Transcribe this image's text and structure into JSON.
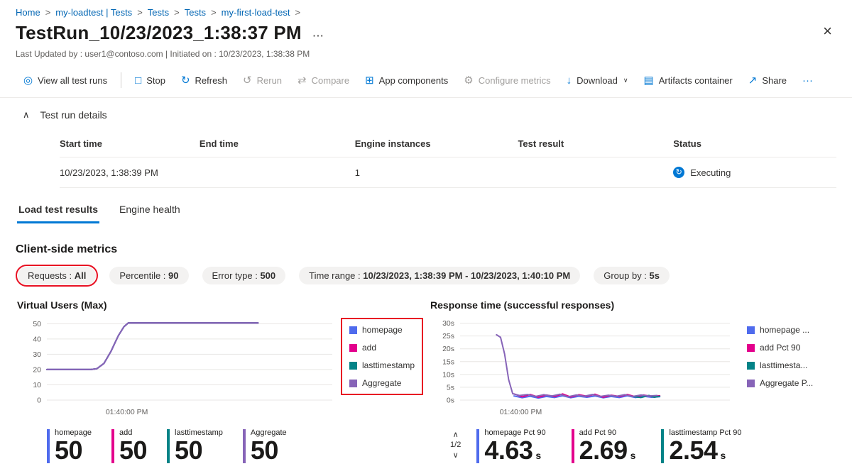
{
  "colors": {
    "accent": "#0078d4",
    "highlight": "#e81123",
    "homepage": "#4f6bed",
    "add": "#e3008c",
    "lasttimestamp": "#038387",
    "aggregate": "#8764b8"
  },
  "icons": {
    "view-all": "◎",
    "stop": "□",
    "refresh": "↻",
    "rerun": "↺",
    "compare": "⇄",
    "app-components": "⊞",
    "configure-metrics": "⚙",
    "download": "↓",
    "artifacts-container": "▤",
    "share": "↗",
    "more": "···",
    "chevron-up": "∧",
    "chevron-down": "∨",
    "close": "×",
    "spinner": "↻",
    "breadcrumb-separator": ">"
  },
  "breadcrumb": {
    "items": [
      "Home",
      "my-loadtest | Tests",
      "Tests",
      "Tests",
      "my-first-load-test"
    ]
  },
  "header": {
    "title": "TestRun_10/23/2023_1:38:37 PM",
    "subtitle": "Last Updated by : user1@contoso.com | Initiated on : 10/23/2023, 1:38:38 PM"
  },
  "toolbar": {
    "items": [
      {
        "label": "View all test runs",
        "icon": "view-all",
        "enabled": true
      },
      {
        "divider": true
      },
      {
        "label": "Stop",
        "icon": "stop",
        "enabled": true
      },
      {
        "label": "Refresh",
        "icon": "refresh",
        "enabled": true
      },
      {
        "label": "Rerun",
        "icon": "rerun",
        "enabled": false
      },
      {
        "label": "Compare",
        "icon": "compare",
        "enabled": false
      },
      {
        "label": "App components",
        "icon": "app-components",
        "enabled": true
      },
      {
        "label": "Configure metrics",
        "icon": "configure-metrics",
        "enabled": false
      },
      {
        "label": "Download",
        "icon": "download",
        "enabled": true,
        "caret": true
      },
      {
        "label": "Artifacts container",
        "icon": "artifacts-container",
        "enabled": true
      },
      {
        "label": "Share",
        "icon": "share",
        "enabled": true
      },
      {
        "label": "",
        "icon": "more",
        "enabled": true
      }
    ]
  },
  "details": {
    "toggle_label": "Test run details",
    "table": {
      "headers": [
        "Start time",
        "End time",
        "Engine instances",
        "Test result",
        "Status"
      ],
      "row": {
        "start_time": "10/23/2023, 1:38:39 PM",
        "end_time": "",
        "engine_instances": "1",
        "test_result": "",
        "status": "Executing"
      }
    }
  },
  "tabs": {
    "items": [
      {
        "label": "Load test results",
        "active": true
      },
      {
        "label": "Engine health",
        "active": false
      }
    ]
  },
  "metrics": {
    "section_title": "Client-side metrics",
    "filters": [
      {
        "label": "Requests",
        "value": "All",
        "highlighted": true
      },
      {
        "label": "Percentile",
        "value": "90"
      },
      {
        "label": "Error type",
        "value": "500"
      },
      {
        "label": "Time range",
        "value": "10/23/2023, 1:38:39 PM - 10/23/2023, 1:40:10 PM"
      },
      {
        "label": "Group by",
        "value": "5s"
      }
    ]
  },
  "chart_data": [
    {
      "type": "line",
      "title": "Virtual Users (Max)",
      "ylim": [
        0,
        52
      ],
      "yticks": [
        {
          "v": 0,
          "label": "0"
        },
        {
          "v": 10,
          "label": "10"
        },
        {
          "v": 20,
          "label": "20"
        },
        {
          "v": 30,
          "label": "30"
        },
        {
          "v": 40,
          "label": "40"
        },
        {
          "v": 50,
          "label": "50"
        }
      ],
      "xtick": {
        "t": 0.28,
        "label": "01:40:00 PM"
      },
      "series": [
        {
          "name": "homepage",
          "color": "#4f6bed",
          "points": [
            [
              0,
              20
            ],
            [
              0.155,
              20
            ],
            [
              0.175,
              20.5
            ],
            [
              0.2,
              24
            ],
            [
              0.225,
              32
            ],
            [
              0.25,
              42
            ],
            [
              0.27,
              48
            ],
            [
              0.285,
              50.5
            ],
            [
              0.74,
              50.5
            ]
          ]
        },
        {
          "name": "add",
          "color": "#e3008c",
          "points": [
            [
              0,
              20
            ],
            [
              0.155,
              20
            ],
            [
              0.175,
              20.5
            ],
            [
              0.2,
              24
            ],
            [
              0.225,
              32
            ],
            [
              0.25,
              42
            ],
            [
              0.27,
              48
            ],
            [
              0.285,
              50.5
            ],
            [
              0.74,
              50.5
            ]
          ]
        },
        {
          "name": "lasttimestamp",
          "color": "#038387",
          "points": [
            [
              0,
              20
            ],
            [
              0.155,
              20
            ],
            [
              0.175,
              20.5
            ],
            [
              0.2,
              24
            ],
            [
              0.225,
              32
            ],
            [
              0.25,
              42
            ],
            [
              0.27,
              48
            ],
            [
              0.285,
              50.5
            ],
            [
              0.74,
              50.5
            ]
          ]
        },
        {
          "name": "Aggregate",
          "color": "#8764b8",
          "points": [
            [
              0,
              20
            ],
            [
              0.155,
              20
            ],
            [
              0.175,
              20.5
            ],
            [
              0.2,
              24
            ],
            [
              0.225,
              32
            ],
            [
              0.25,
              42
            ],
            [
              0.27,
              48
            ],
            [
              0.285,
              50.5
            ],
            [
              0.74,
              50.5
            ]
          ]
        }
      ],
      "legend": [
        {
          "label": "homepage",
          "color": "#4f6bed"
        },
        {
          "label": "add",
          "color": "#e3008c"
        },
        {
          "label": "lasttimestamp",
          "color": "#038387"
        },
        {
          "label": "Aggregate",
          "color": "#8764b8"
        }
      ],
      "legend_highlighted": true,
      "stats": [
        {
          "label": "homepage",
          "value": "50",
          "color": "#4f6bed"
        },
        {
          "label": "add",
          "value": "50",
          "color": "#e3008c"
        },
        {
          "label": "lasttimestamp",
          "value": "50",
          "color": "#038387"
        },
        {
          "label": "Aggregate",
          "value": "50",
          "color": "#8764b8"
        }
      ]
    },
    {
      "type": "line",
      "title": "Response time (successful responses)",
      "ylim": [
        0,
        31
      ],
      "yticks": [
        {
          "v": 0,
          "label": "0s"
        },
        {
          "v": 5,
          "label": "5s"
        },
        {
          "v": 10,
          "label": "10s"
        },
        {
          "v": 15,
          "label": "15s"
        },
        {
          "v": 20,
          "label": "20s"
        },
        {
          "v": 25,
          "label": "25s"
        },
        {
          "v": 30,
          "label": "30s"
        }
      ],
      "xtick": {
        "t": 0.225,
        "label": "01:40:00 PM"
      },
      "series": [
        {
          "name": "homepage Pct 90",
          "color": "#4f6bed",
          "points": [
            [
              0.2,
              1.6
            ],
            [
              0.23,
              0.9
            ],
            [
              0.26,
              1.5
            ],
            [
              0.29,
              0.8
            ],
            [
              0.32,
              1.4
            ],
            [
              0.35,
              1.0
            ],
            [
              0.38,
              1.7
            ],
            [
              0.41,
              0.9
            ],
            [
              0.44,
              1.5
            ],
            [
              0.47,
              1.1
            ],
            [
              0.5,
              1.6
            ],
            [
              0.53,
              0.9
            ],
            [
              0.56,
              1.4
            ],
            [
              0.59,
              1.0
            ],
            [
              0.62,
              1.7
            ],
            [
              0.65,
              1.0
            ],
            [
              0.68,
              1.5
            ],
            [
              0.71,
              1.1
            ],
            [
              0.74,
              1.3
            ]
          ]
        },
        {
          "name": "add Pct 90",
          "color": "#e3008c",
          "points": [
            [
              0.2,
              2.4
            ],
            [
              0.23,
              1.3
            ],
            [
              0.26,
              2.2
            ],
            [
              0.29,
              1.1
            ],
            [
              0.32,
              2.0
            ],
            [
              0.35,
              1.4
            ],
            [
              0.38,
              2.4
            ],
            [
              0.41,
              1.2
            ],
            [
              0.44,
              2.1
            ],
            [
              0.47,
              1.5
            ],
            [
              0.5,
              2.3
            ],
            [
              0.53,
              1.1
            ],
            [
              0.56,
              1.9
            ],
            [
              0.59,
              1.4
            ],
            [
              0.62,
              2.2
            ],
            [
              0.65,
              1.3
            ],
            [
              0.68,
              2.0
            ],
            [
              0.71,
              1.4
            ],
            [
              0.74,
              1.7
            ]
          ]
        },
        {
          "name": "lasttimestamp Pct 90",
          "color": "#038387",
          "points": [
            [
              0.64,
              1.4
            ],
            [
              0.67,
              1.0
            ],
            [
              0.7,
              1.8
            ],
            [
              0.72,
              1.1
            ],
            [
              0.74,
              1.5
            ]
          ]
        },
        {
          "name": "Aggregate Pct 90",
          "color": "#8764b8",
          "points": [
            [
              0.135,
              25.5
            ],
            [
              0.15,
              24.5
            ],
            [
              0.165,
              18
            ],
            [
              0.18,
              8
            ],
            [
              0.195,
              2.5
            ],
            [
              0.22,
              1.8
            ],
            [
              0.25,
              2.2
            ],
            [
              0.28,
              1.4
            ],
            [
              0.31,
              2.1
            ],
            [
              0.34,
              1.6
            ],
            [
              0.37,
              2.3
            ],
            [
              0.4,
              1.3
            ],
            [
              0.43,
              2.0
            ],
            [
              0.46,
              1.5
            ],
            [
              0.49,
              2.2
            ],
            [
              0.52,
              1.4
            ],
            [
              0.55,
              1.9
            ],
            [
              0.58,
              1.5
            ],
            [
              0.61,
              2.1
            ],
            [
              0.64,
              1.4
            ],
            [
              0.67,
              2.0
            ],
            [
              0.7,
              1.6
            ],
            [
              0.73,
              1.8
            ]
          ]
        }
      ],
      "legend": [
        {
          "label": "homepage ...",
          "color": "#4f6bed"
        },
        {
          "label": "add Pct 90",
          "color": "#e3008c"
        },
        {
          "label": "lasttimesta...",
          "color": "#038387"
        },
        {
          "label": "Aggregate P...",
          "color": "#8764b8"
        }
      ],
      "legend_highlighted": false,
      "pagination": {
        "label": "1/2"
      },
      "stats": [
        {
          "label": "homepage Pct 90",
          "value": "4.63",
          "unit": "s",
          "color": "#4f6bed"
        },
        {
          "label": "add Pct 90",
          "value": "2.69",
          "unit": "s",
          "color": "#e3008c"
        },
        {
          "label": "lasttimestamp Pct 90",
          "value": "2.54",
          "unit": "s",
          "color": "#038387"
        }
      ]
    }
  ]
}
